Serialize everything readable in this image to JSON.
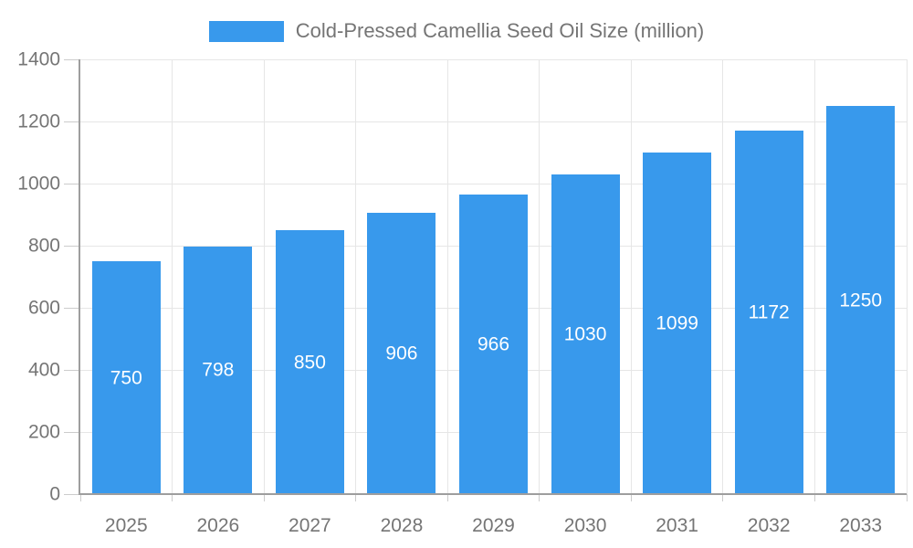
{
  "chart_data": {
    "type": "bar",
    "title": "Cold-Pressed Camellia Seed Oil Size (million)",
    "legend": {
      "position": "top",
      "label": "Cold-Pressed Camellia Seed Oil Size (million)"
    },
    "categories": [
      "2025",
      "2026",
      "2027",
      "2028",
      "2029",
      "2030",
      "2031",
      "2032",
      "2033"
    ],
    "values": [
      750,
      798,
      850,
      906,
      966,
      1030,
      1099,
      1172,
      1250
    ],
    "xlabel": "",
    "ylabel": "",
    "ylim": [
      0,
      1400
    ],
    "yticks": [
      0,
      200,
      400,
      600,
      800,
      1000,
      1200,
      1400
    ],
    "grid": true,
    "value_labels_inside_bars": true,
    "colors": {
      "bar": "#3899EC",
      "bar_value_label": "#FFFFFF",
      "axis_text": "#757575",
      "legend_text": "#757575",
      "gridline": "#E6E6E6",
      "tick": "#CCCCCC",
      "axis_line": "#9E9E9E",
      "background": "#FFFFFF"
    }
  }
}
